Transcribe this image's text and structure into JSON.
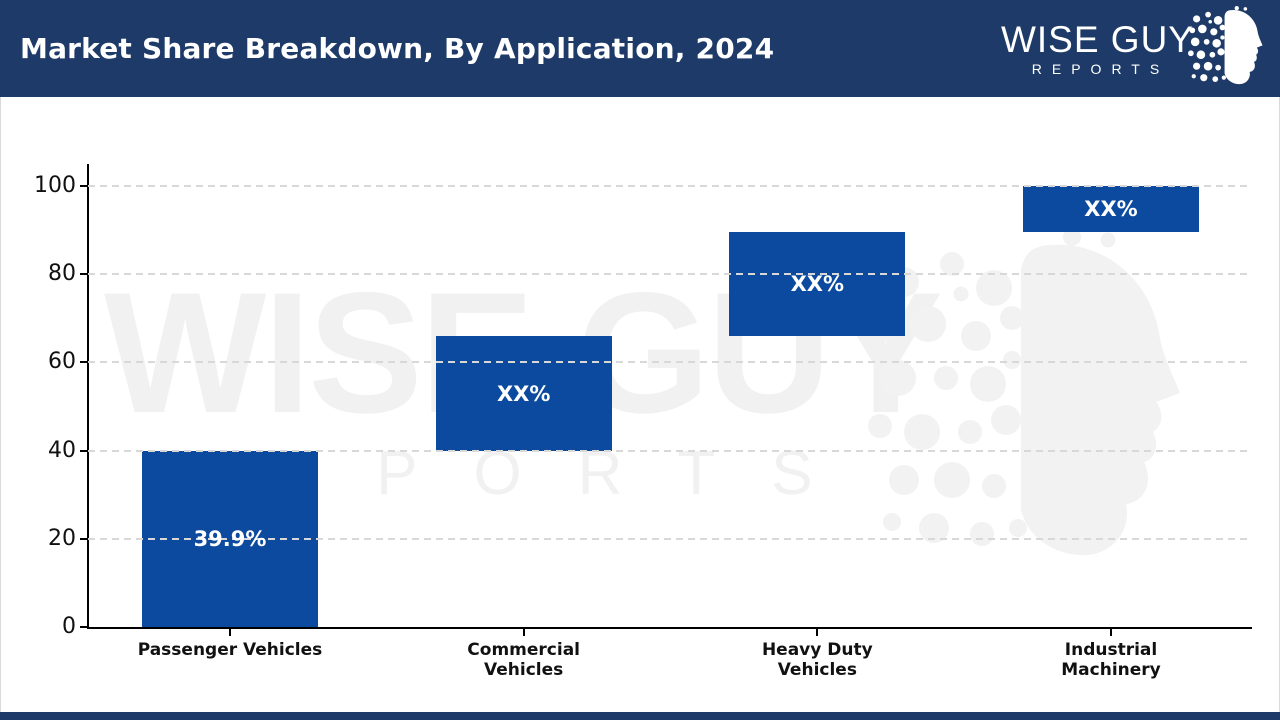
{
  "header": {
    "title": "Market Share Breakdown, By Application, 2024",
    "logo": {
      "line1": "WISE GUY",
      "line2": "REPORTS"
    }
  },
  "watermark": {
    "line1": "WISE GUY",
    "line2": "REPORTS"
  },
  "chart_data": {
    "type": "bar",
    "subtype": "waterfall",
    "title": "Market Share Breakdown, By Application, 2024",
    "xlabel": "",
    "ylabel": "",
    "ylim": [
      0,
      105
    ],
    "yticks": [
      0,
      20,
      40,
      60,
      80,
      100
    ],
    "grid": "dashed horizontal, drawn over bars",
    "legend": "none",
    "bar_color": "#0B4A9E",
    "categories": [
      "Passenger Vehicles",
      "Commercial Vehicles",
      "Heavy Duty Vehicles",
      "Industrial Machinery"
    ],
    "segments": [
      {
        "category_lines": [
          "Passenger Vehicles"
        ],
        "start": 0,
        "end": 39.9,
        "label": "39.9%"
      },
      {
        "category_lines": [
          "Commercial",
          "Vehicles"
        ],
        "start": 39.9,
        "end": 65.9,
        "label": "XX%"
      },
      {
        "category_lines": [
          "Heavy Duty",
          "Vehicles"
        ],
        "start": 65.9,
        "end": 89.5,
        "label": "XX%"
      },
      {
        "category_lines": [
          "Industrial",
          "Machinery"
        ],
        "start": 89.5,
        "end": 100,
        "label": "XX%"
      }
    ]
  },
  "colors": {
    "header_navy": "#1E3A68",
    "footer_navy": "#1E3A68",
    "bar_blue": "#0B4A9E",
    "axis_black": "#000000",
    "gridline_gray": "#D8D8D8",
    "watermark_gray": "#F1F1F2",
    "label_white": "#FFFFFF",
    "text_black": "#111111"
  }
}
